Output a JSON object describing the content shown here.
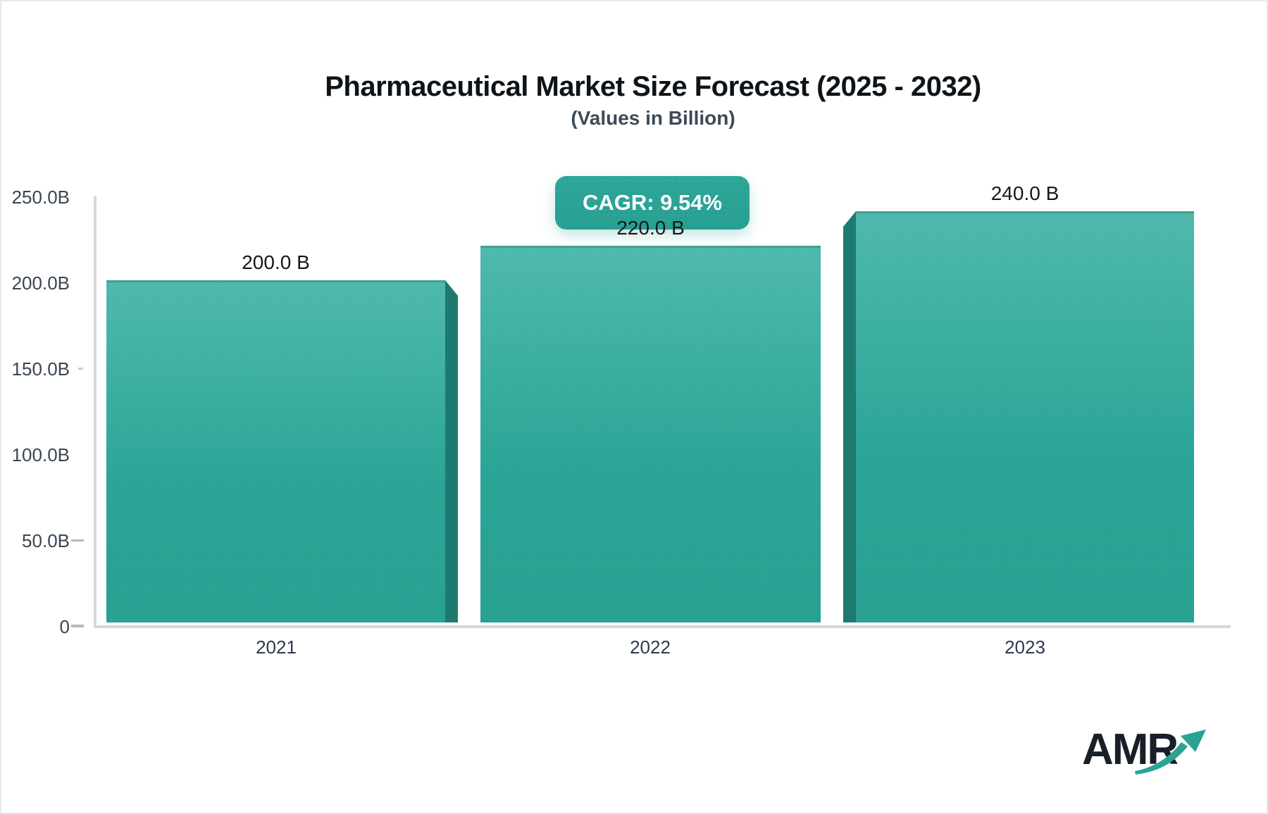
{
  "page": {
    "background": "#ffffff",
    "border_color": "#e7eaed"
  },
  "badge": {
    "bg_color": "#28a093",
    "text_color": "#ffffff"
  },
  "logo": {
    "text": "AMR",
    "text_color": "#172028",
    "arrow_color": "#2aa396",
    "arrow_icon": "growth-arrow-icon"
  },
  "colors": {
    "bar_gradient_top": "#4fbaad",
    "bar_gradient_bottom": "#29a193",
    "bar_side_shadow": "#1e7a6f",
    "axis_line": "#d4d8dc",
    "tick_text": "#3a4553",
    "x_label_text": "#2e3a4e",
    "title_text": "#0e1317",
    "subtitle_text": "#3d4957"
  },
  "chart_data": {
    "type": "bar",
    "title": "Pharmaceutical Market Size Forecast (2025 - 2032)",
    "subtitle": "(Values in Billion)",
    "annotation": "CAGR: 9.54%",
    "categories": [
      "2021",
      "2022",
      "2023"
    ],
    "values": [
      200.0,
      220.0,
      240.0
    ],
    "unit": "Billion",
    "bar_labels": [
      "200.0 B",
      "220.0 B",
      "240.0 B"
    ],
    "yticks": [
      "250.0B",
      "200.0B",
      "150.0B",
      "100.0B",
      "50.0B",
      "0"
    ],
    "ylim": [
      0,
      250
    ],
    "grid": false,
    "legend": false,
    "bar_style": "teal vertical gradient with 3d side extrusion and halftone dot texture"
  }
}
